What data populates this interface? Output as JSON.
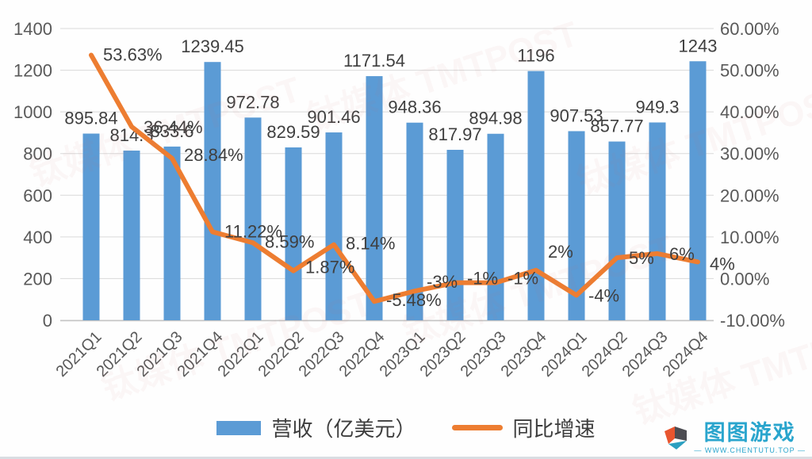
{
  "watermark": {
    "text": "钛媒体 TMTPOST"
  },
  "chart_data": {
    "type": "bar",
    "subtype": "bar+line combo",
    "categories": [
      "2021Q1",
      "2021Q2",
      "2021Q3",
      "2021Q4",
      "2022Q1",
      "2022Q2",
      "2022Q3",
      "2022Q4",
      "2023Q1",
      "2023Q2",
      "2023Q3",
      "2023Q4",
      "2024Q1",
      "2024Q2",
      "2024Q3",
      "2024Q4"
    ],
    "series": [
      {
        "name": "营收（亿美元）",
        "type": "bar",
        "axis": "left",
        "color": "#5b9bd5",
        "values": [
          895.84,
          814.3,
          833.6,
          1239.45,
          972.78,
          829.59,
          901.46,
          1171.54,
          948.36,
          817.97,
          894.98,
          1196,
          907.53,
          857.77,
          949.3,
          1243
        ],
        "labels": [
          "895.84",
          "814.3",
          "833.6",
          "1239.45",
          "972.78",
          "829.59",
          "901.46",
          "1171.54",
          "948.36",
          "817.97",
          "894.98",
          "1196",
          "907.53",
          "857.77",
          "949.3",
          "1243"
        ]
      },
      {
        "name": "同比增速",
        "type": "line",
        "axis": "right",
        "color": "#ed7d31",
        "values": [
          53.63,
          36.44,
          28.84,
          11.22,
          8.59,
          1.87,
          8.14,
          -5.48,
          -3,
          -1,
          -1,
          2,
          -4,
          5,
          6,
          4
        ],
        "labels": [
          "53.63%",
          "36.44%",
          "28.84%",
          "11.22%",
          "8.59%",
          "1.87%",
          "8.14%",
          "-5.48%",
          "-3%",
          "-1%",
          "-1%",
          "2%",
          "-4%",
          "5%",
          "6%",
          "4%"
        ]
      }
    ],
    "left_axis": {
      "min": 0,
      "max": 1400,
      "step": 200,
      "ticks": [
        "0",
        "200",
        "400",
        "600",
        "800",
        "1000",
        "1200",
        "1400"
      ]
    },
    "right_axis": {
      "min": -10,
      "max": 60,
      "step": 10,
      "ticks": [
        "-10.00%",
        "0.00%",
        "10.00%",
        "20.00%",
        "30.00%",
        "40.00%",
        "50.00%",
        "60.00%"
      ]
    },
    "grid": true,
    "legend_position": "bottom",
    "colors": {
      "grid": "#d9d9d9",
      "axis_text": "#595959",
      "data_label": "#3f3f3f"
    }
  },
  "legend": {
    "revenue_label": "营收（亿美元）",
    "growth_label": "同比增速"
  },
  "logo": {
    "title": "图图游戏",
    "url_label": "— WWW.CHENTUTU.TOP —"
  }
}
